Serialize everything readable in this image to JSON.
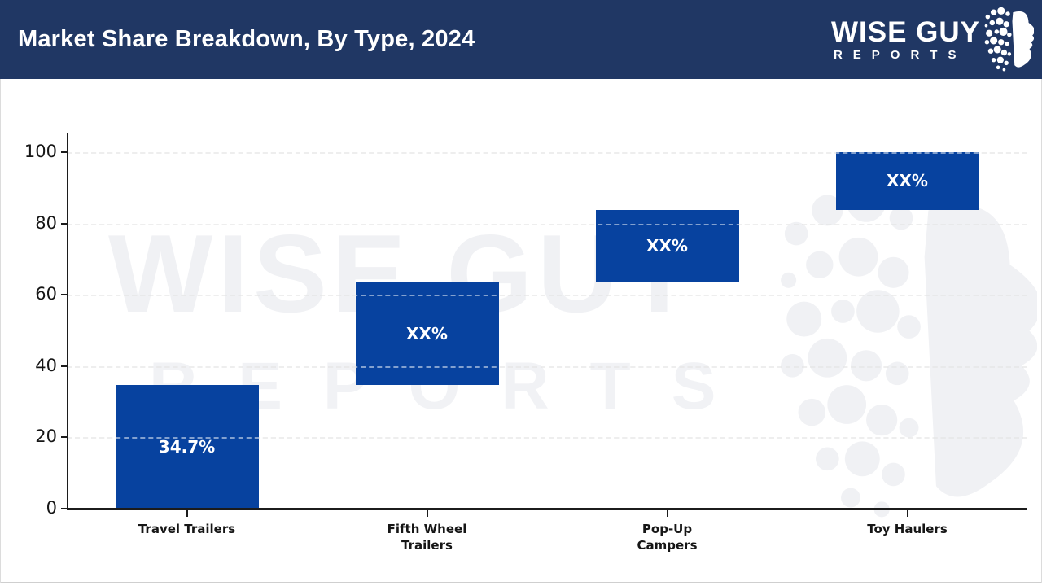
{
  "header": {
    "title": "Market Share Breakdown, By Type, 2024",
    "logo": {
      "line1": "WISE GUY",
      "line2": "REPORTS"
    },
    "bg_color": "#203764"
  },
  "watermark": {
    "line1": "WISE GUY",
    "line2": "REPORTS"
  },
  "chart_data": {
    "type": "bar",
    "variant": "floating-waterfall",
    "title": "Market Share Breakdown, By Type, 2024",
    "categories": [
      "Travel Trailers",
      "Fifth Wheel Trailers",
      "Pop-Up Campers",
      "Toy Haulers"
    ],
    "segments": [
      {
        "category": "Travel Trailers",
        "start": 0,
        "end": 34.7,
        "label": "34.7%"
      },
      {
        "category": "Fifth Wheel Trailers",
        "start": 34.7,
        "end": 63.5,
        "label": "XX%"
      },
      {
        "category": "Pop-Up Campers",
        "start": 63.5,
        "end": 83.8,
        "label": "XX%"
      },
      {
        "category": "Toy Haulers",
        "start": 83.8,
        "end": 100,
        "label": "XX%"
      }
    ],
    "xlabel": "",
    "ylabel": "",
    "yticks": [
      0,
      20,
      40,
      60,
      80,
      100
    ],
    "ylim": [
      0,
      105
    ],
    "grid": "horizontal-dashed",
    "legend": "none",
    "bar_color": "#07429F",
    "bar_label_color": "#FFFFFF",
    "axis_color": "#1C1C1C"
  }
}
